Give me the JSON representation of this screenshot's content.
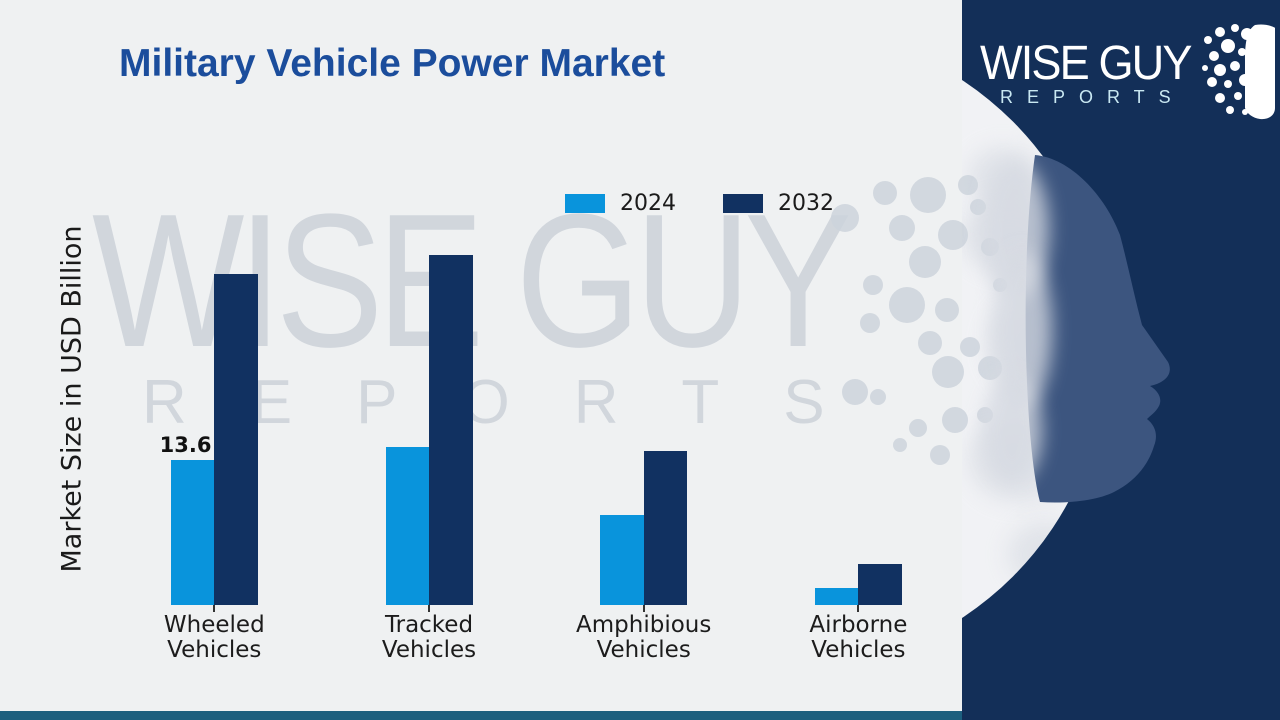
{
  "page": {
    "title": "Military Vehicle Power Market"
  },
  "logo": {
    "line1": "WISE GUY",
    "line2": "REPORTS"
  },
  "watermark": {
    "line1": "WISE GUY",
    "line2": "REPORTS"
  },
  "colors": {
    "title_blue": "#1B4D9C",
    "series_2024": "#0994DC",
    "series_2032": "#113161",
    "panel_navy": "#132F58",
    "bottom_bar_teal": "#1C5F7E",
    "background": "#EFF1F2"
  },
  "chart_data": {
    "type": "bar",
    "title": "Military Vehicle Power Market",
    "xlabel": "",
    "ylabel": "Market Size in USD Billion",
    "categories": [
      "Wheeled Vehicles",
      "Tracked Vehicles",
      "Amphibious Vehicles",
      "Airborne Vehicles"
    ],
    "series": [
      {
        "name": "2024",
        "color": "#0994DC",
        "values": [
          13.6,
          14.8,
          8.4,
          1.6
        ]
      },
      {
        "name": "2032",
        "color": "#113161",
        "values": [
          31.0,
          32.8,
          14.4,
          3.8
        ]
      }
    ],
    "value_labels": [
      {
        "series": "2024",
        "category": "Wheeled Vehicles",
        "text": "13.6"
      }
    ],
    "ylim": [
      0,
      34
    ],
    "grid": false,
    "legend_position": "top"
  }
}
